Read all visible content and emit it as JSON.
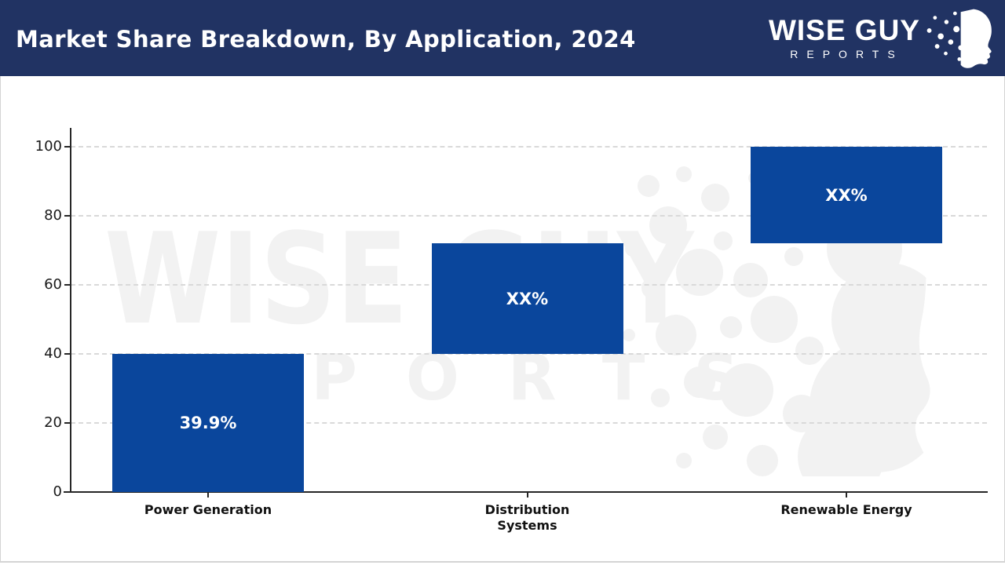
{
  "header": {
    "title": "Market Share Breakdown, By Application, 2024",
    "logo": {
      "name": "WISE GUY",
      "tagline": "REPORTS"
    }
  },
  "watermark": {
    "line1": "WISE GUY",
    "line2": "REPORTS"
  },
  "chart_data": {
    "type": "bar",
    "subtype": "floating-segment-waterfall",
    "title": "Market Share Breakdown, By Application, 2024",
    "categories": [
      "Power Generation",
      "Distribution\nSystems",
      "Renewable Energy"
    ],
    "bars": [
      {
        "category": "Power Generation",
        "start": 0,
        "end": 39.9,
        "label": "39.9%"
      },
      {
        "category": "Distribution\nSystems",
        "start": 40,
        "end": 72,
        "label": "XX%"
      },
      {
        "category": "Renewable Energy",
        "start": 72,
        "end": 100,
        "label": "XX%"
      }
    ],
    "y_ticks": [
      0,
      20,
      40,
      60,
      80,
      100
    ],
    "ylim": [
      0,
      105.5
    ],
    "xlabel": "",
    "ylabel": "",
    "grid": "horizontal-dashed",
    "legend": "none",
    "bar_color": "#0a469c"
  },
  "colors": {
    "header_bg": "#213363",
    "bar": "#0a469c",
    "axis": "#262626",
    "grid": "#d9d9d9",
    "watermark": "#f2f2f2",
    "card_border": "#d4d4d4"
  }
}
